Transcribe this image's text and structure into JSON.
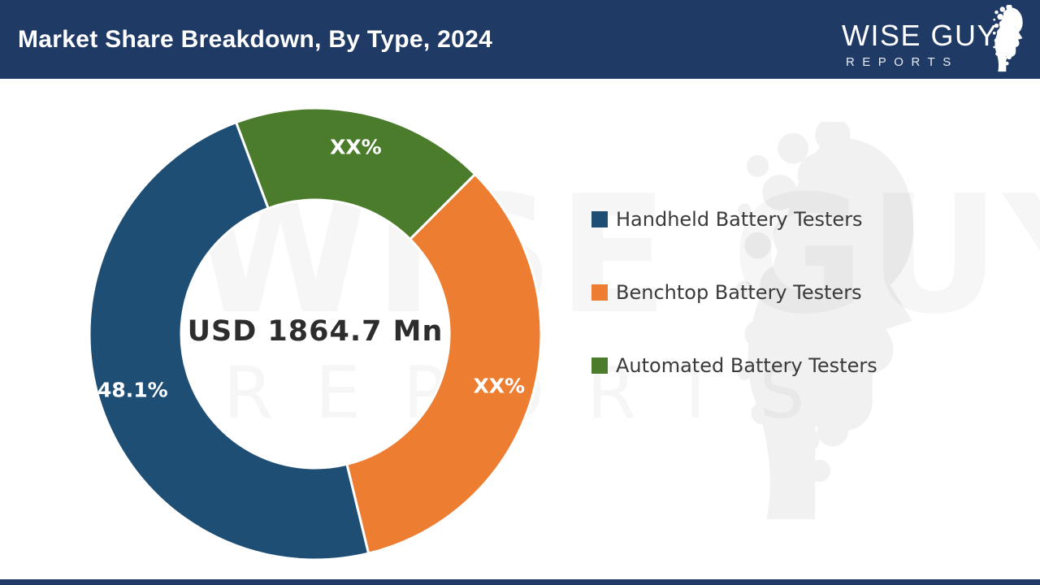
{
  "header": {
    "title": "Market Share Breakdown, By Type, 2024",
    "bg_color": "#203A66",
    "logo": {
      "line1": "WISE GUY",
      "line2": "REPORTS"
    }
  },
  "watermark": {
    "line1": "WISE GUY",
    "line2": "REPORTS"
  },
  "chart_data": {
    "type": "pie",
    "subtype": "donut",
    "title": "Market Share Breakdown, By Type, 2024",
    "center_label": "USD 1864.7 Mn",
    "total_value_usd_mn": 1864.7,
    "start_angle_deg": 110.5,
    "direction": "counterclockwise",
    "legend_position": "right",
    "series": [
      {
        "name": "Handheld Battery Testers",
        "label": "48.1%",
        "value": 48.1,
        "color": "#1F4E74"
      },
      {
        "name": "Benchtop Battery Testers",
        "label": "XX%",
        "value": 33.7,
        "color": "#ED7D31"
      },
      {
        "name": "Automated Battery Testers",
        "label": "XX%",
        "value": 18.2,
        "color": "#4A7C2C"
      }
    ]
  }
}
